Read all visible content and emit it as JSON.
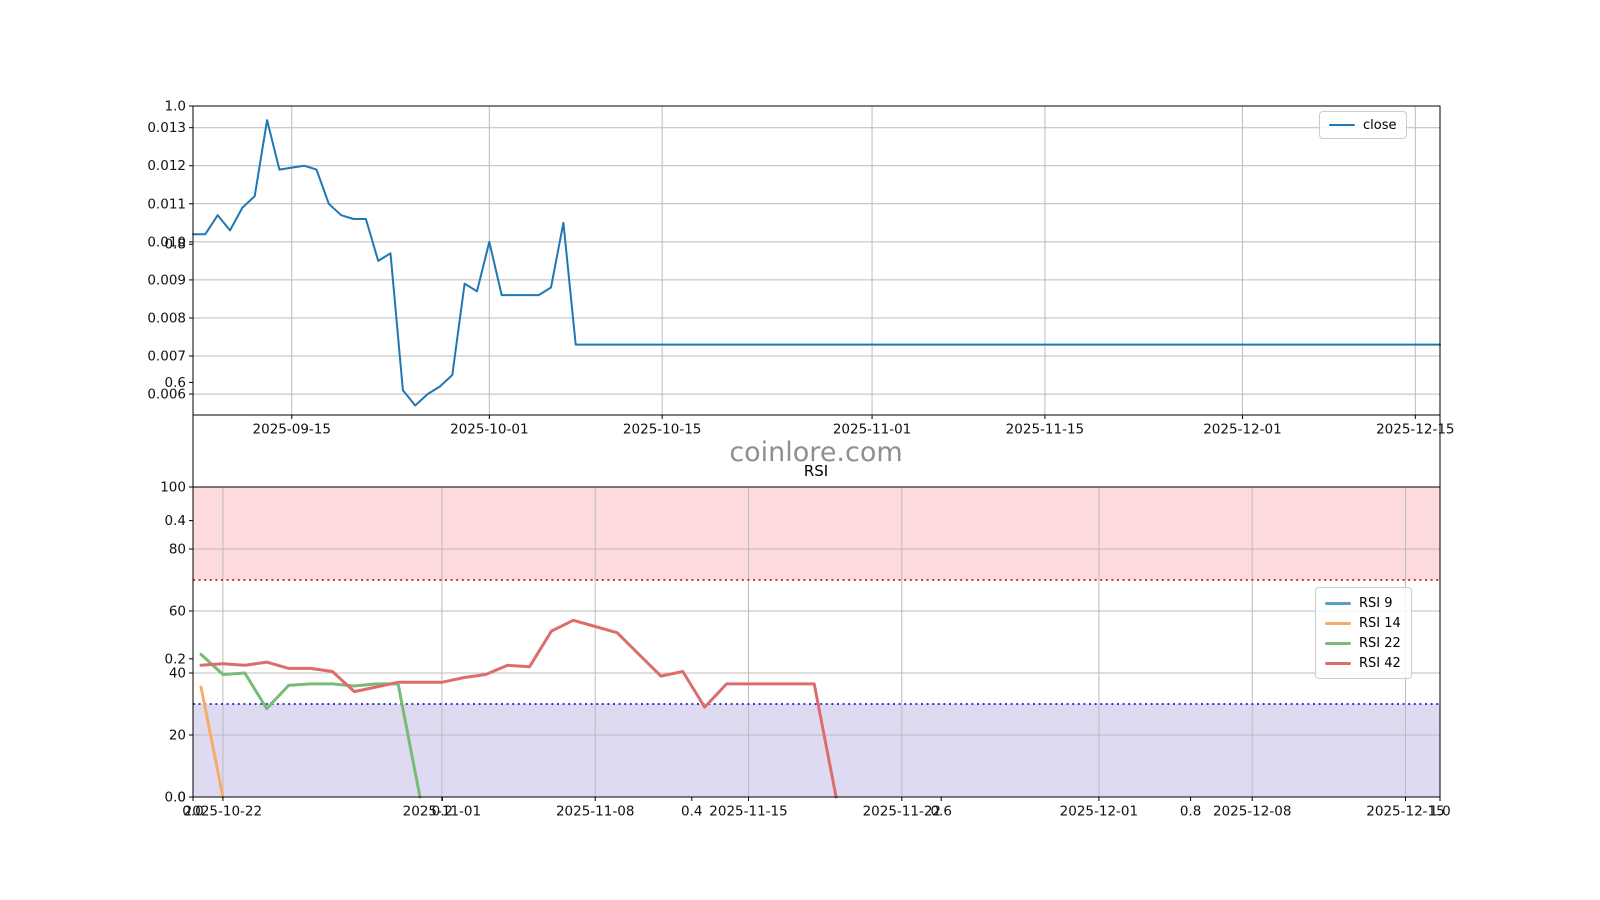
{
  "watermark": {
    "text": "coinlore.com",
    "color": "#8f8f8f"
  },
  "style": {
    "grid_color": "#bcbcbc",
    "axis_color": "#000000",
    "tick_label_color": "#111111",
    "overbought_band_color": "#fcdadd",
    "oversold_band_color": "#dedaf2",
    "overbought_line_color": "#c41f33",
    "oversold_line_color": "#2222bb"
  },
  "overlay_axis": {
    "xtick_labels": [
      "0.0",
      "0.2",
      "0.4",
      "0.6",
      "0.8",
      "1.0"
    ],
    "ytick_labels_top_to_bottom": [
      "1.0",
      "0.8",
      "0.6",
      "0.4",
      "0.2",
      "0.0"
    ]
  },
  "chart_data": [
    {
      "type": "line",
      "title": "",
      "legend_position": "upper right",
      "x_start_date": "2025-09-07",
      "x_total_days": 101,
      "xtick_labels": [
        "2025-09-15",
        "2025-10-01",
        "2025-10-15",
        "2025-11-01",
        "2025-11-15",
        "2025-12-01",
        "2025-12-15"
      ],
      "xtick_day_offsets": [
        8,
        24,
        38,
        55,
        69,
        85,
        99
      ],
      "ytick_values": [
        0.006,
        0.007,
        0.008,
        0.009,
        0.01,
        0.011,
        0.012,
        0.013
      ],
      "ytick_labels": [
        "0.006",
        "0.007",
        "0.008",
        "0.009",
        "0.010",
        "0.011",
        "0.012",
        "0.013"
      ],
      "ylim": [
        0.00545,
        0.01357
      ],
      "grid": true,
      "series": [
        {
          "name": "close",
          "color": "#1f77b4",
          "daily_values_from_start": [
            0.0102,
            0.0102,
            0.0107,
            0.0103,
            0.0109,
            0.0112,
            0.0132,
            0.0119,
            0.01195,
            0.012,
            0.0119,
            0.011,
            0.0107,
            0.0106,
            0.0106,
            0.0095,
            0.0097,
            0.0061,
            0.0057,
            0.006,
            0.0062,
            0.0065,
            0.0089,
            0.0087,
            0.01,
            0.0086,
            0.0086,
            0.0086,
            0.0086,
            0.0088,
            0.0105,
            0.0073
          ],
          "tail_fill_value": 0.0073
        }
      ]
    },
    {
      "type": "line",
      "title": "RSI",
      "legend_position": "right",
      "x_start_date": "2025-10-21",
      "x_total_days": 56,
      "xtick_labels": [
        "2025-10-22",
        "2025-11-01",
        "2025-11-08",
        "2025-11-15",
        "2025-11-22",
        "2025-12-01",
        "2025-12-08",
        "2025-12-15"
      ],
      "xtick_day_offsets": [
        1,
        11,
        18,
        25,
        32,
        41,
        48,
        55
      ],
      "ytick_values": [
        0,
        20,
        40,
        60,
        80,
        100
      ],
      "ytick_labels": [
        "0",
        "20",
        "40",
        "60",
        "80",
        "100"
      ],
      "ylim": [
        0,
        100
      ],
      "overbought_level": 70,
      "oversold_level": 30,
      "grid": true,
      "series": [
        {
          "name": "RSI 9",
          "color": "#5b9dc9",
          "points": []
        },
        {
          "name": "RSI 14",
          "color": "#f7ab67",
          "points": [
            [
              0,
              35.5
            ],
            [
              1,
              0
            ]
          ]
        },
        {
          "name": "RSI 22",
          "color": "#77bb77",
          "points": [
            [
              0,
              46
            ],
            [
              1,
              39.5
            ],
            [
              2,
              40
            ],
            [
              3,
              28.5
            ],
            [
              4,
              36
            ],
            [
              5,
              36.5
            ],
            [
              6,
              36.5
            ],
            [
              7,
              35.8
            ],
            [
              8,
              36.5
            ],
            [
              9,
              36.5
            ],
            [
              10,
              0
            ]
          ]
        },
        {
          "name": "RSI 42",
          "color": "#dc6d6c",
          "points": [
            [
              0,
              42.5
            ],
            [
              1,
              43
            ],
            [
              2,
              42.5
            ],
            [
              3,
              43.5
            ],
            [
              4,
              41.5
            ],
            [
              5,
              41.5
            ],
            [
              6,
              40.5
            ],
            [
              7,
              34
            ],
            [
              8,
              35.5
            ],
            [
              9,
              37
            ],
            [
              10,
              37
            ],
            [
              11,
              37
            ],
            [
              12,
              38.5
            ],
            [
              13,
              39.5
            ],
            [
              14,
              42.5
            ],
            [
              15,
              42
            ],
            [
              16,
              53.5
            ],
            [
              17,
              57
            ],
            [
              18,
              55
            ],
            [
              19,
              53
            ],
            [
              20,
              46
            ],
            [
              21,
              39
            ],
            [
              22,
              40.5
            ],
            [
              23,
              29
            ],
            [
              24,
              36.5
            ],
            [
              25,
              36.5
            ],
            [
              26,
              36.5
            ],
            [
              27,
              36.5
            ],
            [
              28,
              36.5
            ],
            [
              29,
              0
            ]
          ]
        }
      ]
    }
  ]
}
